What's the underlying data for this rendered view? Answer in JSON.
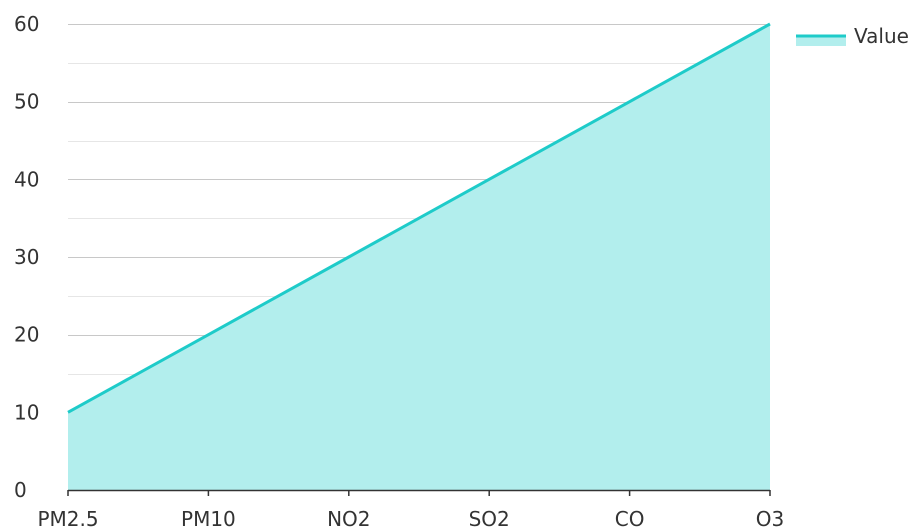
{
  "chart_data": {
    "type": "area",
    "categories": [
      "PM2.5",
      "PM10",
      "NO2",
      "SO2",
      "CO",
      "O3"
    ],
    "series": [
      {
        "name": "Value",
        "values": [
          10,
          20,
          30,
          40,
          50,
          60
        ],
        "line_color": "#1ecbc9",
        "fill_color": "#b2eeed"
      }
    ],
    "ylim": [
      0,
      60
    ],
    "yticks": [
      0,
      10,
      20,
      30,
      40,
      50,
      60
    ],
    "grid": true,
    "legend": "top-right",
    "title": "",
    "xlabel": "",
    "ylabel": ""
  }
}
